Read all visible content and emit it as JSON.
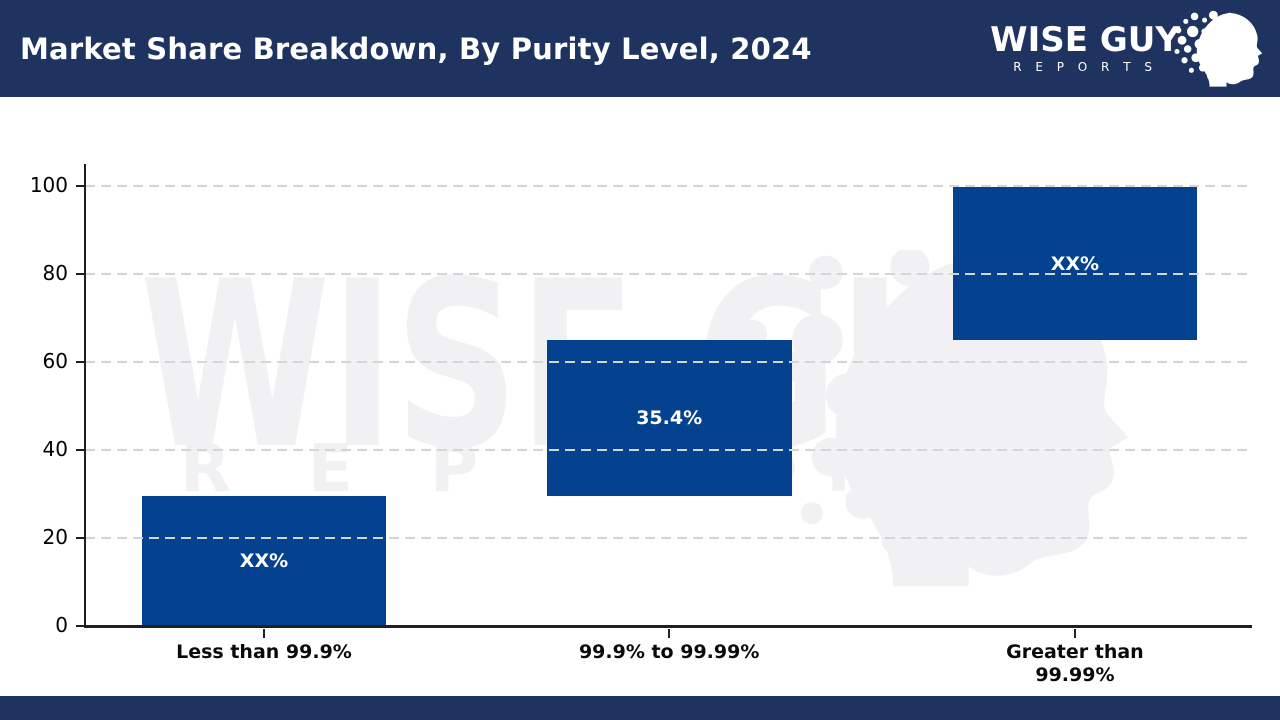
{
  "header": {
    "title": "Market Share Breakdown, By Purity Level, 2024",
    "bg_color": "#1f3360"
  },
  "brand": {
    "line1": "WISE GUY",
    "line2": "R E P O R T S"
  },
  "watermark": {
    "line1": "WISE GUY",
    "line2": "R E P O R T S",
    "color": "#f1f1f4"
  },
  "footer": {
    "bg_color": "#1f3360"
  },
  "chart_data": {
    "type": "bar",
    "subtype": "floating-segment-waterfall",
    "title": "Market Share Breakdown, By Purity Level, 2024",
    "categories": [
      "Less than 99.9%",
      "99.9% to 99.99%",
      "Greater than 99.99%"
    ],
    "bars": [
      {
        "category": "Less than 99.9%",
        "start": 0,
        "end": 29.5,
        "value": 29.5,
        "label": "XX%"
      },
      {
        "category": "99.9% to 99.99%",
        "start": 29.5,
        "end": 64.9,
        "value": 35.4,
        "label": "35.4%"
      },
      {
        "category": "Greater than 99.99%",
        "start": 64.9,
        "end": 99.8,
        "value": 34.9,
        "label": "XX%"
      }
    ],
    "bar_labels": [
      "XX%",
      "35.4%",
      "XX%"
    ],
    "ylim": [
      0,
      100
    ],
    "yticks": [
      0,
      20,
      40,
      60,
      80,
      100
    ],
    "xlabel": "",
    "ylabel": "",
    "grid": "horizontal-dashed",
    "legend": "none",
    "bar_color": "#04418f",
    "bar_label_color": "#ffffff",
    "axis_color": "#1f1f1f",
    "gridline_color": "#d5d5d5"
  }
}
